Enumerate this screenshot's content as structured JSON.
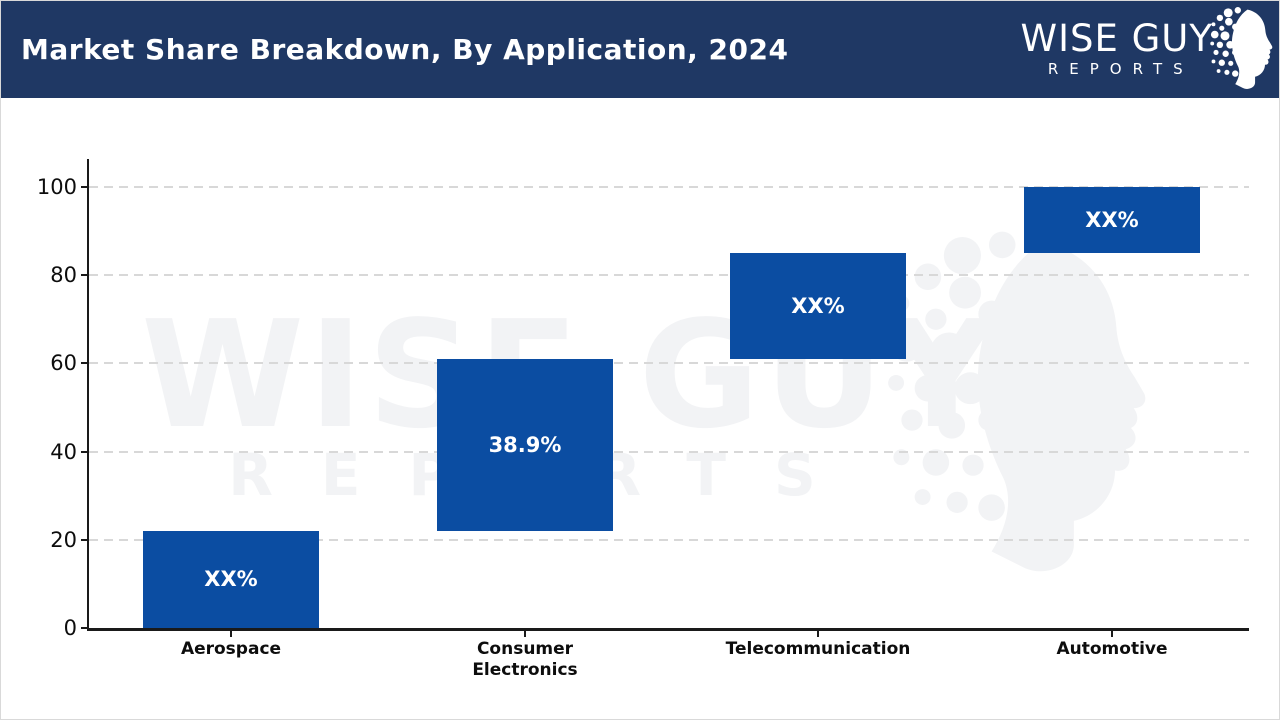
{
  "header": {
    "logo": {
      "line1": "WISE GUY",
      "line2": "REPORTS"
    }
  },
  "watermark": {
    "line1": "WISE GUY",
    "line2": "REPORTS"
  },
  "chart_data": {
    "type": "bar",
    "subtype": "floating-segment-breakdown",
    "title": "Market Share Breakdown, By Application, 2024",
    "categories": [
      "Aerospace",
      "Consumer Electronics",
      "Telecommunication",
      "Automotive"
    ],
    "x_tick_labels": [
      "Aerospace",
      "Consumer\nElectronics",
      "Telecommunication",
      "Automotive"
    ],
    "segments": [
      {
        "category": "Aerospace",
        "from": 0,
        "to": 22,
        "label": "XX%"
      },
      {
        "category": "Consumer Electronics",
        "from": 22,
        "to": 60.9,
        "label": "38.9%",
        "value": 38.9
      },
      {
        "category": "Telecommunication",
        "from": 60.9,
        "to": 85,
        "label": "XX%"
      },
      {
        "category": "Automotive",
        "from": 85,
        "to": 100,
        "label": "XX%"
      }
    ],
    "yticks": [
      0,
      20,
      40,
      60,
      80,
      100
    ],
    "ylim": [
      0,
      106
    ],
    "xlabel": "",
    "ylabel": "",
    "grid": "horizontal-dashed",
    "legend": false,
    "colors": {
      "bar": "#0b4da2",
      "header_background": "#1f3864",
      "gridline": "#d8d8d8",
      "axis": "#1a1a1a",
      "bar_label_text": "#ffffff",
      "watermark": "#f2f3f5"
    }
  }
}
